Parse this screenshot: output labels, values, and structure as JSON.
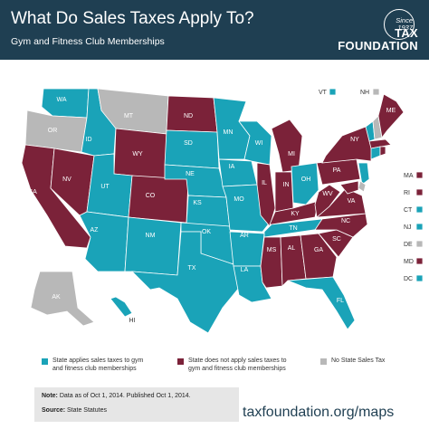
{
  "header": {
    "title": "What Do Sales Taxes Apply To?",
    "subtitle": "Gym and Fitness Club Memberships"
  },
  "logo": {
    "seal_line1": "Since",
    "seal_line2": "1937",
    "brand_line1": "TAX",
    "brand_line2": "FOUNDATION"
  },
  "colors": {
    "applies": "#1aa3b8",
    "does_not_apply": "#7b2239",
    "no_sales_tax": "#b8b8b8",
    "header": "#1f3f52"
  },
  "map": {
    "states": {
      "WA": "applies",
      "OR": "none",
      "ID": "applies",
      "MT": "none",
      "WY": "does_not_apply",
      "CA": "does_not_apply",
      "NV": "does_not_apply",
      "UT": "applies",
      "AZ": "applies",
      "CO": "does_not_apply",
      "NM": "applies",
      "ND": "does_not_apply",
      "SD": "applies",
      "NE": "applies",
      "KS": "applies",
      "OK": "applies",
      "TX": "applies",
      "MN": "applies",
      "IA": "applies",
      "MO": "applies",
      "AR": "applies",
      "LA": "applies",
      "WI": "applies",
      "IL": "does_not_apply",
      "MI": "does_not_apply",
      "IN": "does_not_apply",
      "OH": "applies",
      "KY": "does_not_apply",
      "TN": "applies",
      "MS": "does_not_apply",
      "AL": "does_not_apply",
      "GA": "does_not_apply",
      "FL": "applies",
      "SC": "does_not_apply",
      "NC": "does_not_apply",
      "VA": "does_not_apply",
      "WV": "does_not_apply",
      "PA": "does_not_apply",
      "NY": "does_not_apply",
      "ME": "does_not_apply",
      "AK": "none",
      "HI": "applies",
      "VT": "applies",
      "NH": "none",
      "MA": "does_not_apply",
      "RI": "does_not_apply",
      "CT": "applies",
      "NJ": "applies",
      "DE": "none",
      "MD": "does_not_apply",
      "DC": "applies"
    },
    "small_states": [
      {
        "abbr": "VT",
        "status": "applies"
      },
      {
        "abbr": "NH",
        "status": "none"
      },
      {
        "abbr": "MA",
        "status": "does_not_apply"
      },
      {
        "abbr": "RI",
        "status": "does_not_apply"
      },
      {
        "abbr": "CT",
        "status": "applies"
      },
      {
        "abbr": "NJ",
        "status": "applies"
      },
      {
        "abbr": "DE",
        "status": "none"
      },
      {
        "abbr": "MD",
        "status": "does_not_apply"
      },
      {
        "abbr": "DC",
        "status": "applies"
      }
    ]
  },
  "legend": {
    "applies": "State applies sales taxes to gym and fitness club memberships",
    "applies_line1": "State applies sales taxes to gym",
    "applies_line2": "and fitness club memberships",
    "not_line1": "State does not apply sales taxes to",
    "not_line2": "gym and fitness club memberships",
    "none": "No State Sales Tax"
  },
  "note": {
    "line1_bold": "Note:",
    "line1_text": "Data as of Oct 1, 2014. Published Oct 1, 2014.",
    "line2_bold": "Source:",
    "line2_text": "State Statutes"
  },
  "footer": {
    "url": "taxfoundation.org/maps"
  }
}
